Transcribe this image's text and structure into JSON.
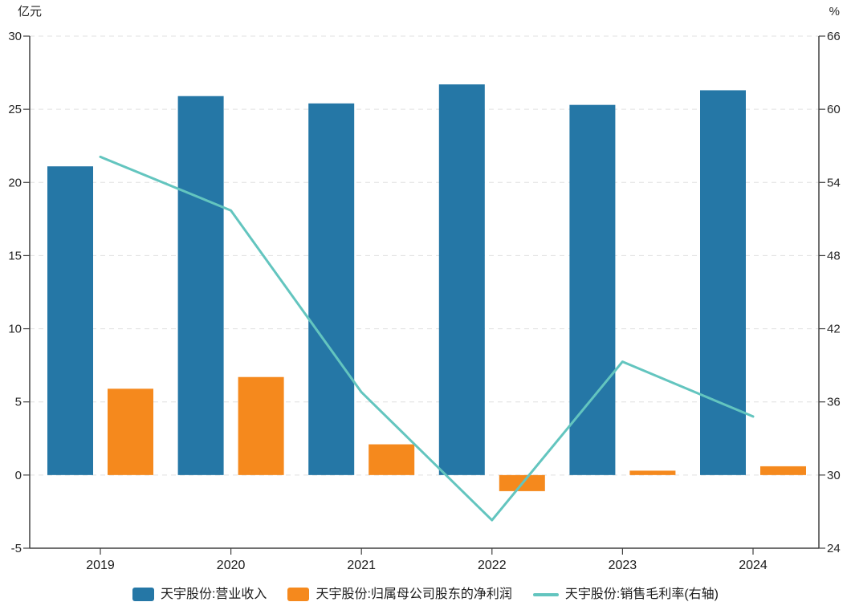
{
  "chart_data": {
    "type": "bar",
    "subtype": "bar-line-combo",
    "title": "",
    "categories": [
      "2019",
      "2020",
      "2021",
      "2022",
      "2023",
      "2024"
    ],
    "series": [
      {
        "name": "天宇股份:营业收入",
        "type": "bar",
        "axis": "left",
        "color": "#2577A6",
        "values": [
          21.1,
          25.9,
          25.4,
          26.7,
          25.3,
          26.3
        ]
      },
      {
        "name": "天宇股份:归属母公司股东的净利润",
        "type": "bar",
        "axis": "left",
        "color": "#F5891D",
        "values": [
          5.9,
          6.7,
          2.1,
          -1.1,
          0.3,
          0.6
        ]
      },
      {
        "name": "天宇股份:销售毛利率(右轴)",
        "type": "line",
        "axis": "right",
        "color": "#63C5BF",
        "values": [
          56.1,
          51.7,
          36.8,
          26.3,
          39.3,
          34.8
        ]
      }
    ],
    "left_axis": {
      "label": "亿元",
      "min": -5,
      "max": 30,
      "tick_step": 5,
      "ticks": [
        30,
        25,
        20,
        15,
        10,
        5,
        0,
        -5
      ]
    },
    "right_axis": {
      "label": "%",
      "min": 24,
      "max": 66,
      "tick_step": 6,
      "ticks": [
        66,
        60,
        54,
        48,
        42,
        36,
        30,
        24
      ]
    },
    "grid": true,
    "gridline_color": "#E0E0E0",
    "axis_color": "#404040",
    "tick_label_color": "#262626",
    "legend_position": "bottom"
  }
}
